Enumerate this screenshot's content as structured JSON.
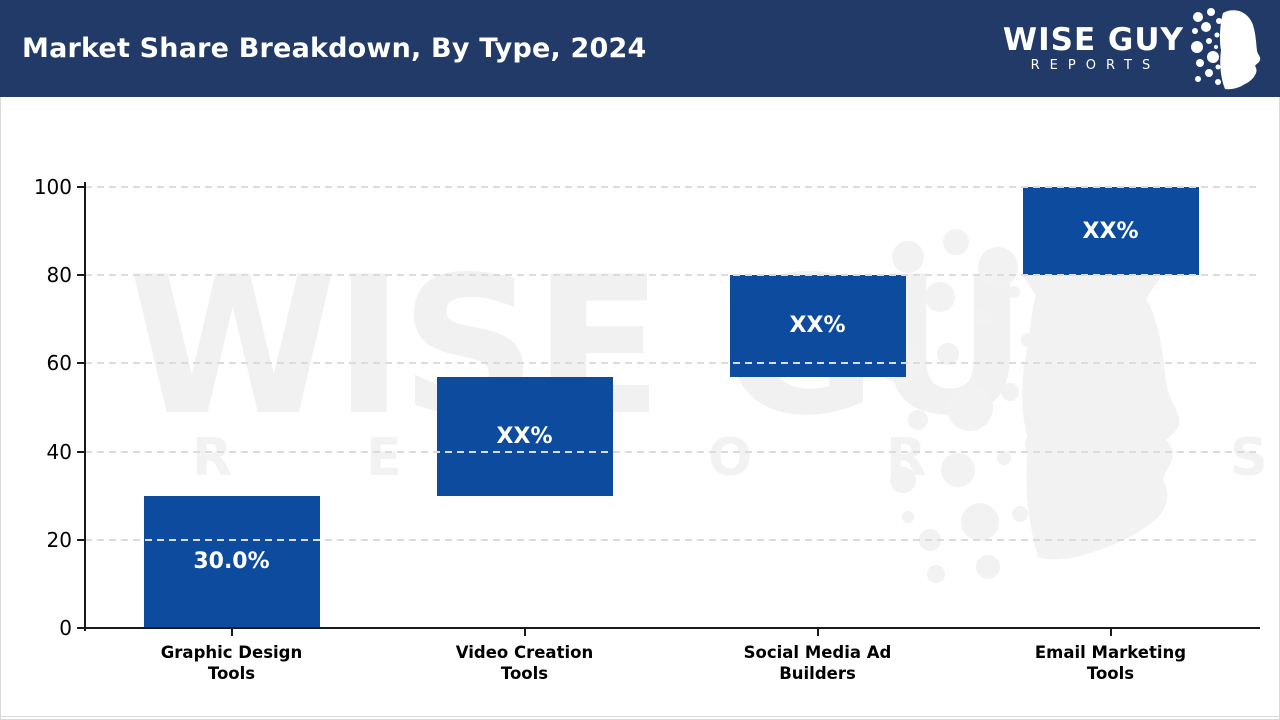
{
  "header": {
    "title": "Market Share Breakdown, By Type, 2024",
    "logo": {
      "name": "WISE GUY",
      "sub": "REPORTS"
    }
  },
  "watermark": {
    "name": "WISE GUY",
    "sub": "R E P O R T S"
  },
  "chart_data": {
    "type": "bar",
    "subtype": "waterfall",
    "title": "Market Share Breakdown, By Type, 2024",
    "categories": [
      {
        "label": "Graphic Design Tools",
        "lines": [
          "Graphic Design",
          "Tools"
        ]
      },
      {
        "label": "Video Creation Tools",
        "lines": [
          "Video Creation",
          "Tools"
        ]
      },
      {
        "label": "Social Media Ad Builders",
        "lines": [
          "Social Media Ad",
          "Builders"
        ]
      },
      {
        "label": "Email Marketing Tools",
        "lines": [
          "Email Marketing",
          "Tools"
        ]
      }
    ],
    "segments": [
      {
        "category": "Graphic Design Tools",
        "start": 0,
        "end": 30,
        "label": "30.0%"
      },
      {
        "category": "Video Creation Tools",
        "start": 30,
        "end": 57,
        "label": "XX%"
      },
      {
        "category": "Social Media Ad Builders",
        "start": 57,
        "end": 80,
        "label": "XX%"
      },
      {
        "category": "Email Marketing Tools",
        "start": 80,
        "end": 100,
        "label": "XX%"
      }
    ],
    "xlabel": "",
    "ylabel": "",
    "ylim": [
      0,
      100
    ],
    "yticks": [
      0,
      20,
      40,
      60,
      80,
      100
    ],
    "grid": "horizontal-dashed",
    "legend": "none",
    "colors": {
      "bar": "#0d4b9f",
      "bar_label": "#ffffff",
      "header_bg": "#213a67",
      "header_text": "#ffffff",
      "axis": "#1a1a1a",
      "gridline": "#dcdcdc",
      "tick_label": "#000000",
      "watermark": "#f1f1f2"
    }
  }
}
